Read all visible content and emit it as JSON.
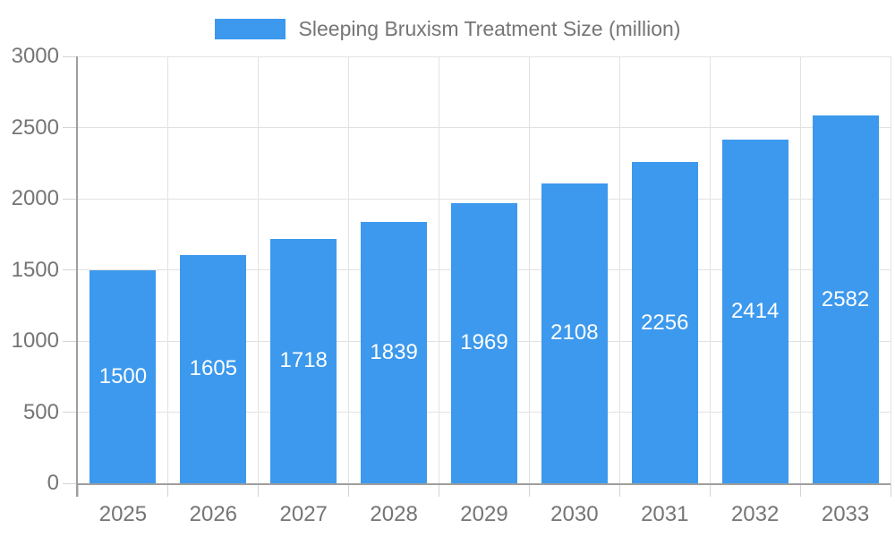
{
  "legend": {
    "label": "Sleeping Bruxism Treatment Size (million)"
  },
  "colors": {
    "bar": "#3c99ed",
    "grid": "#e2e2e2",
    "tick": "#d4d4d4",
    "axis": "#9e9e9e",
    "text": "#757575",
    "bar_label": "#ffffff",
    "background": "#ffffff"
  },
  "chart_data": {
    "type": "bar",
    "title": "Sleeping Bruxism Treatment Size (million)",
    "categories": [
      "2025",
      "2026",
      "2027",
      "2028",
      "2029",
      "2030",
      "2031",
      "2032",
      "2033"
    ],
    "values": [
      1500,
      1605,
      1718,
      1839,
      1969,
      2108,
      2256,
      2414,
      2582
    ],
    "series_name": "Sleeping Bruxism Treatment Size (million)",
    "xlabel": "",
    "ylabel": "",
    "ylim": [
      0,
      3000
    ],
    "ytick_step": 500,
    "ytick_labels": [
      "0",
      "500",
      "1000",
      "1500",
      "2000",
      "2500",
      "3000"
    ],
    "grid": "both",
    "legend_position": "top",
    "value_labels": "inside-center"
  }
}
